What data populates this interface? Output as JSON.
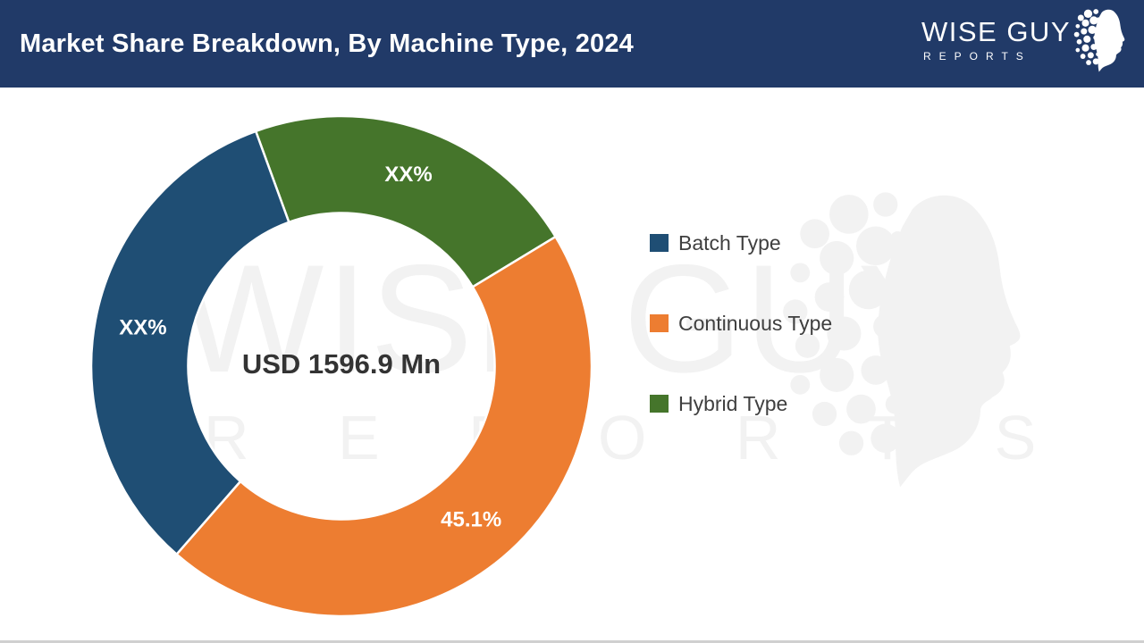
{
  "header": {
    "title": "Market Share Breakdown, By Machine Type, 2024",
    "bg_color": "#213a68",
    "logo": {
      "line1": "WISE GUY",
      "line2": "REPORTS"
    }
  },
  "chart_data": {
    "type": "donut",
    "title": "Market Share Breakdown, By Machine Type, 2024",
    "center_label": "USD 1596.9 Mn",
    "legend_position": "right",
    "start_angle_deg": -20,
    "slices": [
      {
        "name": "Hybrid Type",
        "display_label": "XX%",
        "value_pct": 21.9,
        "value_shown": false,
        "color": "#45752b"
      },
      {
        "name": "Continuous Type",
        "display_label": "45.1%",
        "value_pct": 45.1,
        "value_shown": true,
        "color": "#ed7d31"
      },
      {
        "name": "Batch Type",
        "display_label": "XX%",
        "value_pct": 33.0,
        "value_shown": false,
        "color": "#1f4e74"
      }
    ]
  },
  "legend": {
    "items": [
      {
        "label": "Batch Type",
        "color": "#1f4e74"
      },
      {
        "label": "Continuous Type",
        "color": "#ed7d31"
      },
      {
        "label": "Hybrid Type",
        "color": "#45752b"
      }
    ]
  },
  "watermark": {
    "line1": "WISE GUY",
    "line2": "R E P O R T S"
  }
}
